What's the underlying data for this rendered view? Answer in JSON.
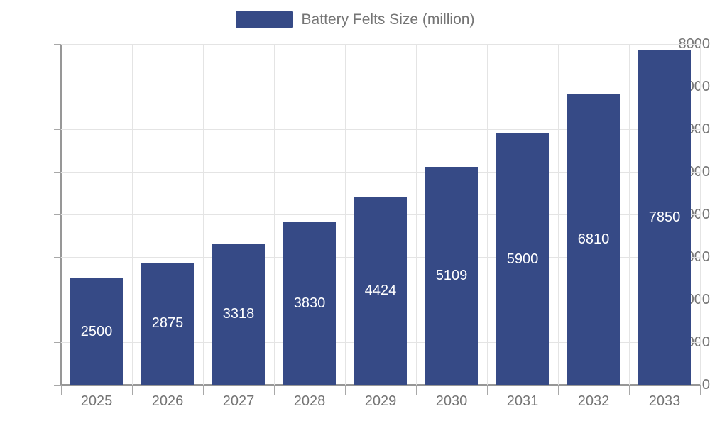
{
  "chart_data": {
    "type": "bar",
    "title": "Battery Felts Size (million)",
    "legend_entries": [
      "Battery Felts Size (million)"
    ],
    "legend_position": "top-center",
    "categories": [
      "2025",
      "2026",
      "2027",
      "2028",
      "2029",
      "2030",
      "2031",
      "2032",
      "2033"
    ],
    "values": [
      2500,
      2875,
      3318,
      3830,
      4424,
      5109,
      5900,
      6810,
      7850
    ],
    "bar_data_labels": [
      "2500",
      "2875",
      "3318",
      "3830",
      "4424",
      "5109",
      "5900",
      "6810",
      "7850"
    ],
    "xlabel": "",
    "ylabel": "",
    "ylim": [
      0,
      8000
    ],
    "ytick_step": 1000,
    "yticks": [
      "0",
      "1000",
      "2000",
      "3000",
      "4000",
      "5000",
      "6000",
      "7000",
      "8000"
    ],
    "grid": "on",
    "colors": {
      "bar": "#364a86",
      "bar_label": "#ffffff",
      "grid_line": "#e4e4e4",
      "axis_line": "#979797",
      "tick_label": "#757575",
      "background": "#ffffff"
    }
  }
}
